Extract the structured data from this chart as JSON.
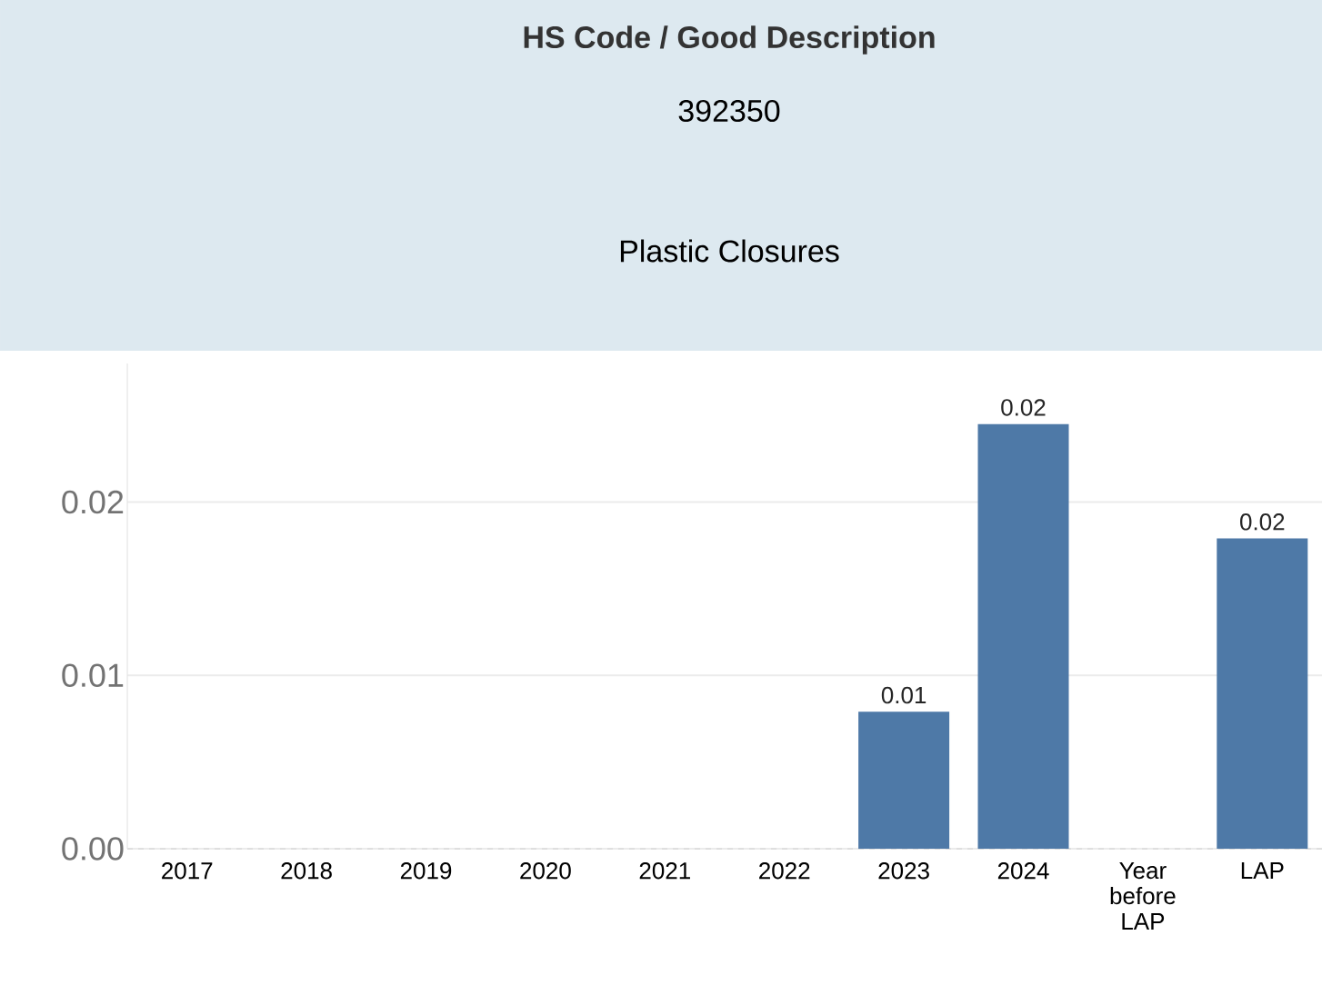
{
  "chart_data": {
    "type": "bar",
    "title": "HS Code / Good Description",
    "subtitle": "392350",
    "annotations": [
      "Plastic Closures"
    ],
    "categories": [
      "2017",
      "2018",
      "2019",
      "2020",
      "2021",
      "2022",
      "2023",
      "2024",
      "Year before LAP",
      "LAP"
    ],
    "values": [
      null,
      null,
      null,
      null,
      null,
      null,
      0.0079,
      0.0245,
      null,
      0.0179
    ],
    "value_labels": [
      null,
      null,
      null,
      null,
      null,
      null,
      "0.01",
      "0.02",
      null,
      "0.02"
    ],
    "color": "#4e79a7",
    "ylim": [
      0,
      0.028
    ],
    "yticks": [
      {
        "value": 0,
        "label": "0.00"
      },
      {
        "value": 0.01,
        "label": "0.01"
      },
      {
        "value": 0.02,
        "label": "0.02"
      }
    ],
    "grid": "y"
  }
}
